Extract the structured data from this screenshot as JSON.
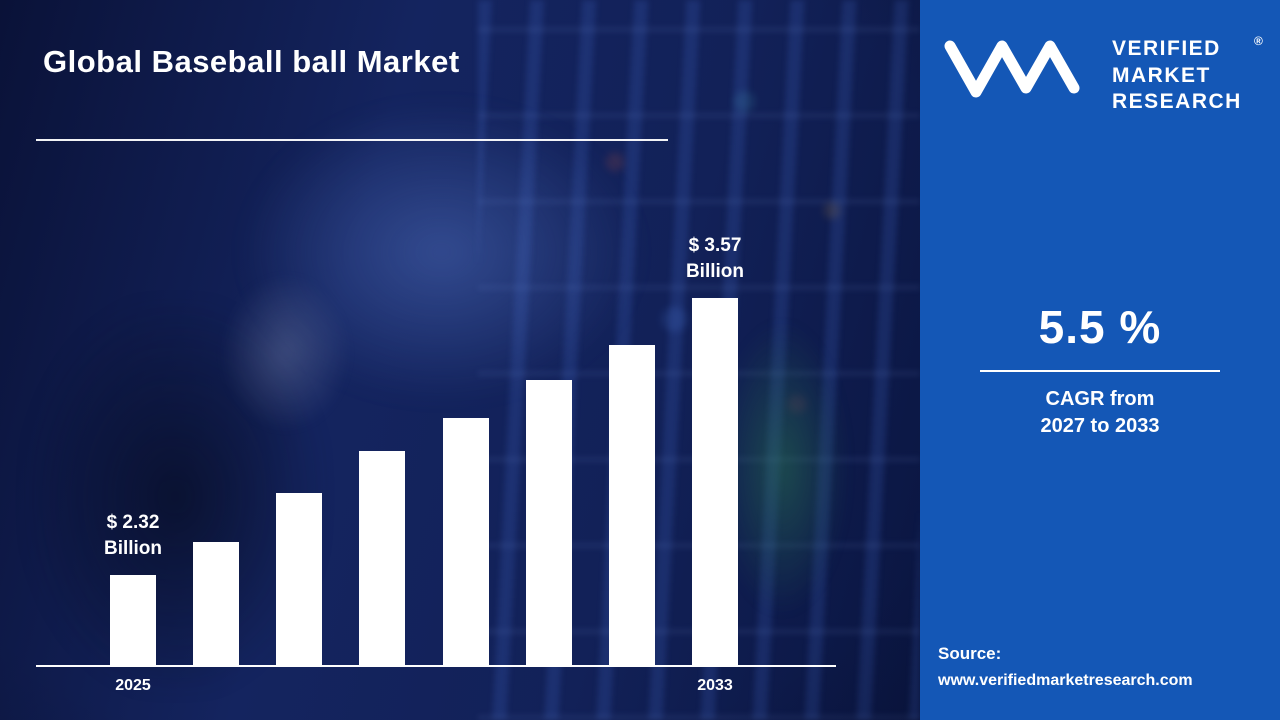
{
  "title": "Global Baseball ball Market",
  "sidebar": {
    "brand": {
      "lines": [
        "VERIFIED",
        "MARKET",
        "RESEARCH"
      ],
      "registered": "®",
      "mark_icon": "vmr-monogram"
    },
    "stat_value": "5.5 %",
    "stat_caption_line1": "CAGR from",
    "stat_caption_line2": "2027 to 2033",
    "source_label": "Source:",
    "source_url": "www.verifiedmarketresearch.com"
  },
  "colors": {
    "sidebar_bg": "#1457b6",
    "main_bg": "#0d1a4a",
    "bar": "#ffffff",
    "text": "#ffffff"
  },
  "chart_data": {
    "type": "bar",
    "title": "Global Baseball ball Market",
    "unit": "USD Billion",
    "categories": [
      "2025",
      "",
      "",
      "",
      "",
      "",
      "",
      "2033"
    ],
    "values": [
      2.32,
      2.47,
      2.69,
      2.88,
      3.03,
      3.2,
      3.36,
      3.57
    ],
    "x_tick_labels_visible": [
      "2025",
      "2033"
    ],
    "annotations": [
      {
        "bar_index": 0,
        "lines": [
          "$ 2.32",
          "Billion"
        ]
      },
      {
        "bar_index": 7,
        "lines": [
          "$ 3.57",
          "Billion"
        ]
      }
    ],
    "bar_color": "#ffffff",
    "baseline_color": "#ffffff",
    "value_axis_visible": false,
    "gridlines": false,
    "legend": "none"
  }
}
